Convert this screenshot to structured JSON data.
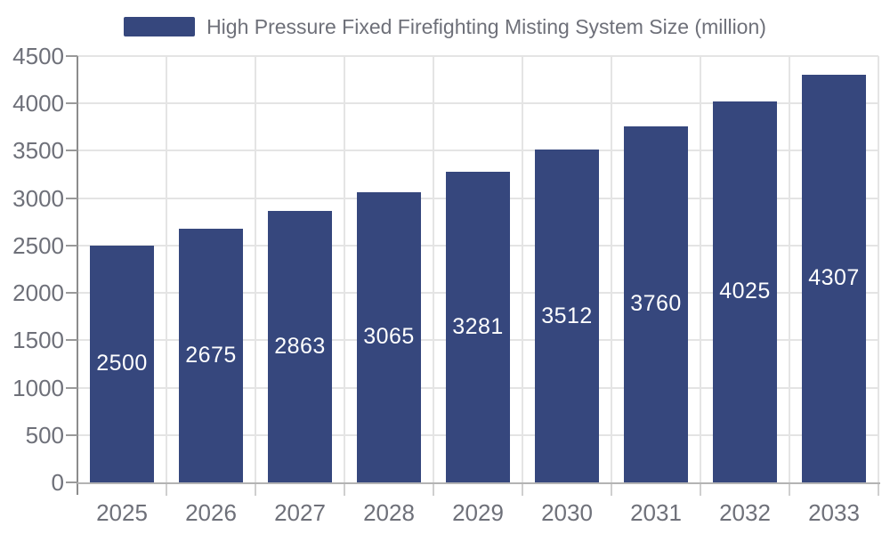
{
  "chart_data": {
    "type": "bar",
    "title": "High Pressure Fixed Firefighting Misting System Size (million)",
    "legend": [
      "High Pressure Fixed Firefighting Misting System Size (million)"
    ],
    "legend_position": "top",
    "categories": [
      "2025",
      "2026",
      "2027",
      "2028",
      "2029",
      "2030",
      "2031",
      "2032",
      "2033"
    ],
    "values": [
      2500,
      2675,
      2863,
      3065,
      3281,
      3512,
      3760,
      4025,
      4307
    ],
    "xlabel": "",
    "ylabel": "",
    "ylim": [
      0,
      4500
    ],
    "ytick_step": 500,
    "grid": true,
    "colors": {
      "bar": "#36477D",
      "bar_value_text": "#FFFFFF",
      "axis_text": "#6E7079",
      "grid_line": "#E4E4E4",
      "y_axis_line": "#8C8C8C",
      "x_axis_line": "#B3B3B3",
      "x_tick": "#CFCFCF",
      "y_tick": "#9A9A9A",
      "background": "#FFFFFF"
    }
  }
}
